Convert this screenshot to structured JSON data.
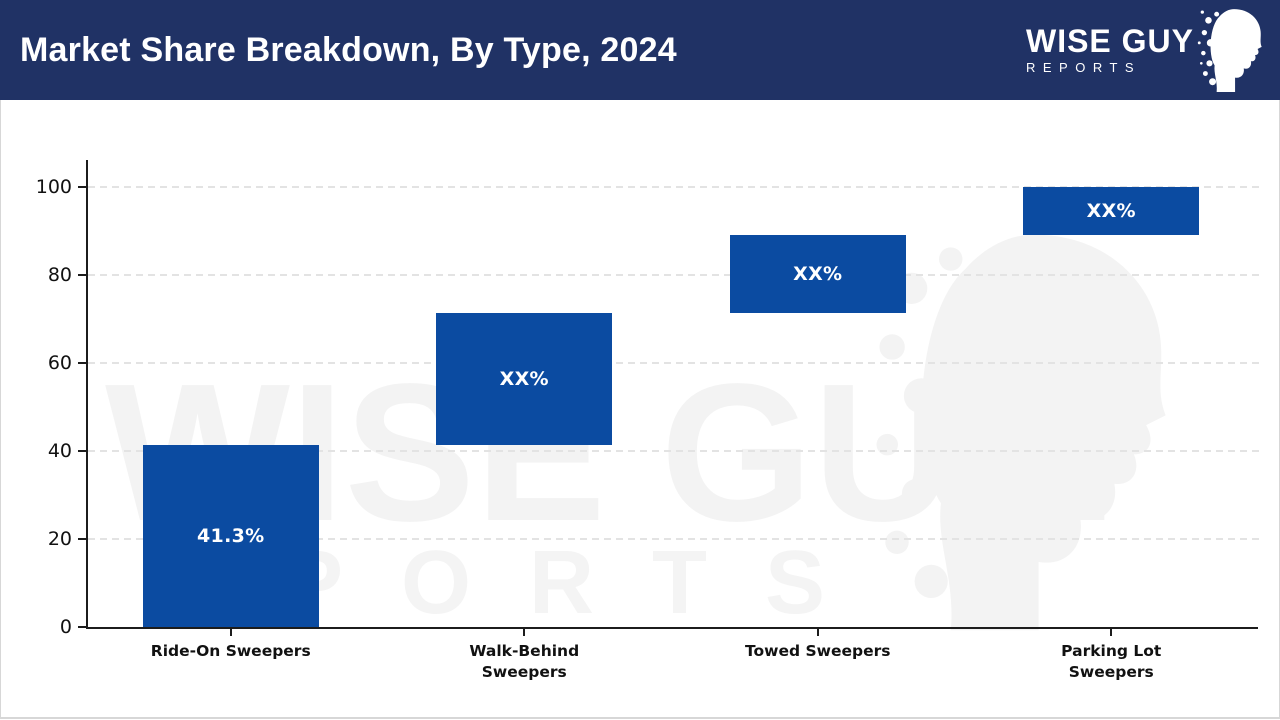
{
  "header": {
    "title": "Market Share Breakdown, By Type, 2024",
    "bg_color": "#203265",
    "logo": {
      "line1": "WISE GUY",
      "line2": "REPORTS"
    }
  },
  "watermark": {
    "line1": "WISE GUY.",
    "line2": "PORTS"
  },
  "chart_data": {
    "type": "bar",
    "subtype": "waterfall",
    "title": "Market Share Breakdown, By Type, 2024",
    "xlabel": "",
    "ylabel": "",
    "ylim": [
      0,
      105
    ],
    "yticks": [
      0,
      20,
      40,
      60,
      80,
      100
    ],
    "grid": "horizontal-dashed",
    "legend": "none",
    "bar_color": "#0b4ba1",
    "value_label_color": "#ffffff",
    "categories": [
      "Ride-On Sweepers",
      "Walk-Behind Sweepers",
      "Towed Sweepers",
      "Parking Lot Sweepers"
    ],
    "category_label_lines": [
      [
        "Ride-On Sweepers"
      ],
      [
        "Walk-Behind",
        "Sweepers"
      ],
      [
        "Towed Sweepers"
      ],
      [
        "Parking Lot",
        "Sweepers"
      ]
    ],
    "segments": [
      {
        "category": "Ride-On Sweepers",
        "start": 0,
        "end": 41.3,
        "value": 41.3,
        "label": "41.3%"
      },
      {
        "category": "Walk-Behind Sweepers",
        "start": 41.3,
        "end": 71.4,
        "value": 30.1,
        "label": "XX%"
      },
      {
        "category": "Towed Sweepers",
        "start": 71.4,
        "end": 89.0,
        "value": 17.6,
        "label": "XX%"
      },
      {
        "category": "Parking Lot Sweepers",
        "start": 89.0,
        "end": 100.0,
        "value": 11.0,
        "label": "XX%"
      }
    ]
  }
}
